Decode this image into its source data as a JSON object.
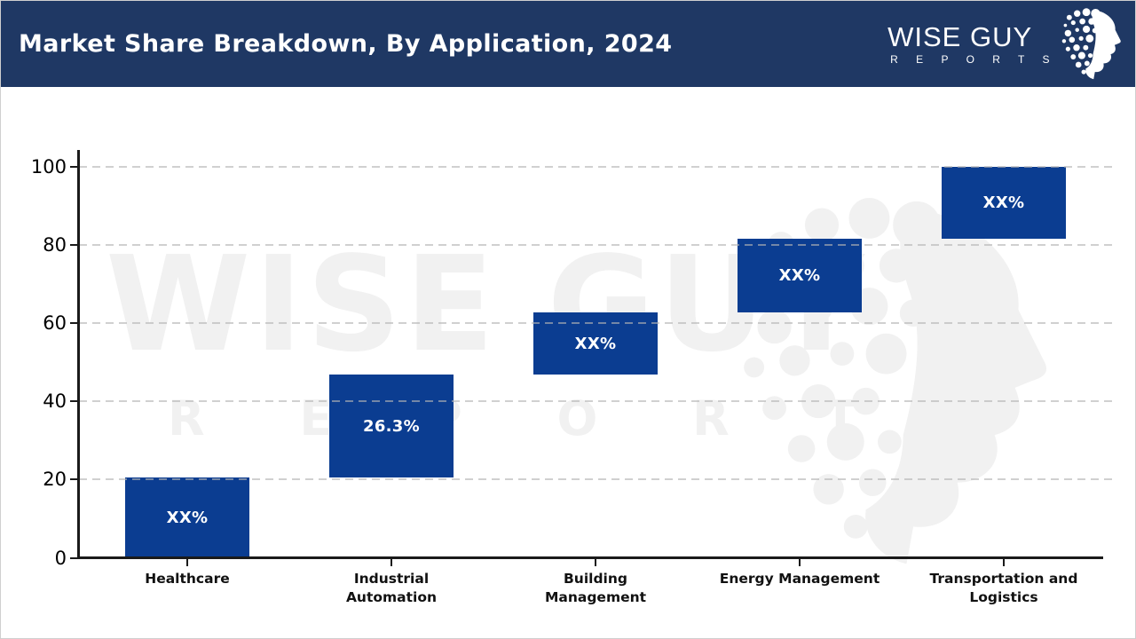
{
  "header": {
    "title": "Market Share Breakdown, By Application, 2024",
    "logo": {
      "line1": "WISE GUY",
      "line2": "R E P O R T S"
    }
  },
  "watermark": {
    "line1": "WISE GUY",
    "line2": "R E P O R T S"
  },
  "colors": {
    "header_bg": "#1f3864",
    "bar": "#0b3d91",
    "axis": "#1a1a1a",
    "gridline": "#c8c8c8",
    "bar_label_text": "#ffffff",
    "watermark": "#f1f1f1"
  },
  "chart_data": {
    "type": "bar",
    "subtype": "waterfall",
    "title": "Market Share Breakdown, By Application, 2024",
    "categories": [
      "Healthcare",
      "Industrial Automation",
      "Building Management",
      "Energy Management",
      "Transportation and Logistics"
    ],
    "tick_labels": [
      "Healthcare",
      "Industrial\nAutomation",
      "Building\nManagement",
      "Energy Management",
      "Transportation and\nLogistics"
    ],
    "segments": [
      {
        "category": "Healthcare",
        "start": 0,
        "end": 20.5,
        "label": "XX%"
      },
      {
        "category": "Industrial Automation",
        "start": 20.5,
        "end": 46.8,
        "label": "26.3%"
      },
      {
        "category": "Building Management",
        "start": 46.8,
        "end": 62.8,
        "label": "XX%"
      },
      {
        "category": "Energy Management",
        "start": 62.8,
        "end": 81.7,
        "label": "XX%"
      },
      {
        "category": "Transportation and Logistics",
        "start": 81.7,
        "end": 100,
        "label": "XX%"
      }
    ],
    "yticks": [
      "0",
      "20",
      "40",
      "60",
      "80",
      "100"
    ],
    "ytick_values": [
      0,
      20,
      40,
      60,
      80,
      100
    ],
    "ylim": [
      0,
      105
    ],
    "xlabel": "",
    "ylabel": "",
    "grid": "horizontal dashed",
    "legend": "none"
  }
}
